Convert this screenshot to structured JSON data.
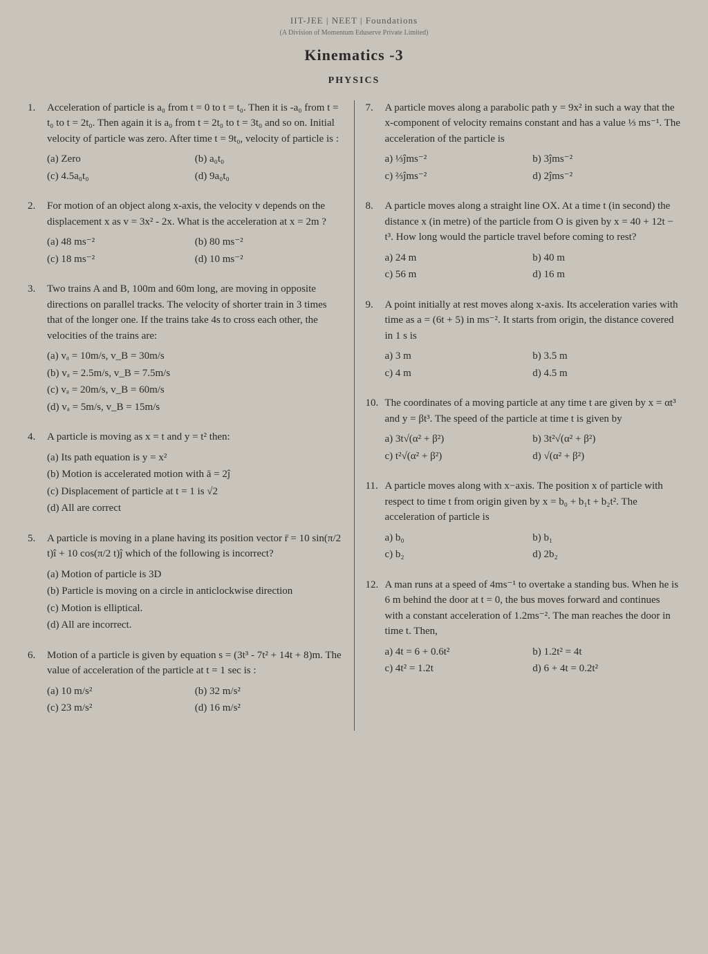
{
  "header": {
    "brand": "IIT-JEE | NEET | Foundations",
    "subbrand": "(A Division of Momentum Eduserve Private Limited)",
    "title": "Kinematics -3",
    "subject": "PHYSICS"
  },
  "left": {
    "q1": {
      "num": "1.",
      "text": "Acceleration of particle is a₀ from t = 0 to t = t₀. Then it is -a₀ from t = t₀ to t = 2t₀. Then again it is a₀ from t = 2t₀ to t = 3t₀ and so on. Initial velocity of particle was zero. After time t = 9t₀, velocity of particle is :",
      "a": "(a) Zero",
      "b": "(b) a₀t₀",
      "c": "(c) 4.5a₀t₀",
      "d": "(d) 9a₀t₀"
    },
    "q2": {
      "num": "2.",
      "text": "For motion of an object along x-axis, the velocity v depends on the displacement x as v = 3x² - 2x. What is the acceleration at x = 2m ?",
      "a": "(a) 48 ms⁻²",
      "b": "(b) 80 ms⁻²",
      "c": "(c) 18 ms⁻²",
      "d": "(d) 10 ms⁻²"
    },
    "q3": {
      "num": "3.",
      "text": "Two trains A and B, 100m and 60m long, are moving in opposite directions on parallel tracks. The velocity of shorter train in 3 times that of the longer one. If the trains take 4s to cross each other, the velocities of the trains are:",
      "a": "(a) vₐ = 10m/s, v_B = 30m/s",
      "b": "(b) vₐ = 2.5m/s, v_B = 7.5m/s",
      "c": "(c) vₐ = 20m/s, v_B = 60m/s",
      "d": "(d) vₐ = 5m/s, v_B = 15m/s"
    },
    "q4": {
      "num": "4.",
      "text": "A particle is moving as x = t and y = t² then:",
      "a": "(a) Its path equation is y = x²",
      "b": "(b) Motion is accelerated motion with ā = 2ĵ",
      "c": "(c) Displacement of particle at t = 1 is √2",
      "d": "(d) All are correct"
    },
    "q5": {
      "num": "5.",
      "text": "A particle is moving in a plane having its position vector r̄ = 10 sin(π/2 t)î + 10 cos(π/2 t)ĵ which of the following is incorrect?",
      "a": "(a) Motion of particle is 3D",
      "b": "(b) Particle is moving on a circle in anticlockwise direction",
      "c": "(c) Motion is elliptical.",
      "d": "(d) All are incorrect."
    },
    "q6": {
      "num": "6.",
      "text": "Motion of a particle is given by equation s = (3t³ - 7t² + 14t + 8)m. The value of acceleration of the particle at t = 1 sec is :",
      "a": "(a) 10 m/s²",
      "b": "(b) 32 m/s²",
      "c": "(c) 23 m/s²",
      "d": "(d) 16 m/s²"
    }
  },
  "right": {
    "q7": {
      "num": "7.",
      "text": "A particle moves along a parabolic path y = 9x² in such a way that the x-component of velocity remains constant and has a value ⅓ ms⁻¹. The acceleration of the particle is",
      "a": "a) ⅓ĵms⁻²",
      "b": "b) 3ĵms⁻²",
      "c": "c) ⅔ĵms⁻²",
      "d": "d) 2ĵms⁻²"
    },
    "q8": {
      "num": "8.",
      "text": "A particle moves along a straight line OX. At a time t (in second) the distance x (in metre) of the particle from O is given by x = 40 + 12t − t³. How long would the particle travel before coming to rest?",
      "a": "a) 24 m",
      "b": "b) 40 m",
      "c": "c) 56 m",
      "d": "d) 16 m"
    },
    "q9": {
      "num": "9.",
      "text": "A point initially at rest moves along x-axis. Its acceleration varies with time as a = (6t + 5) in ms⁻². It starts from origin, the distance covered in 1 s is",
      "a": "a) 3 m",
      "b": "b) 3.5 m",
      "c": "c) 4 m",
      "d": "d) 4.5 m"
    },
    "q10": {
      "num": "10.",
      "text": "The coordinates of a moving particle at any time t are given by x = αt³ and y = βt³. The speed of the particle at time t is given by",
      "a": "a) 3t√(α² + β²)",
      "b": "b) 3t²√(α² + β²)",
      "c": "c) t²√(α² + β²)",
      "d": "d) √(α² + β²)"
    },
    "q11": {
      "num": "11.",
      "text": "A particle moves along with x−axis. The position x of particle with respect to time t from origin given by x = b₀ + b₁t + b₂t². The acceleration of particle is",
      "a": "a) b₀",
      "b": "b) b₁",
      "c": "c) b₂",
      "d": "d) 2b₂"
    },
    "q12": {
      "num": "12.",
      "text": "A man runs at a speed of 4ms⁻¹ to overtake a standing bus. When he is 6 m behind the door at t = 0, the bus moves forward and continues with a constant acceleration of 1.2ms⁻². The man reaches the door in time t. Then,",
      "a": "a) 4t = 6 + 0.6t²",
      "b": "b) 1.2t² = 4t",
      "c": "c) 4t² = 1.2t",
      "d": "d) 6 + 4t = 0.2t²"
    }
  }
}
